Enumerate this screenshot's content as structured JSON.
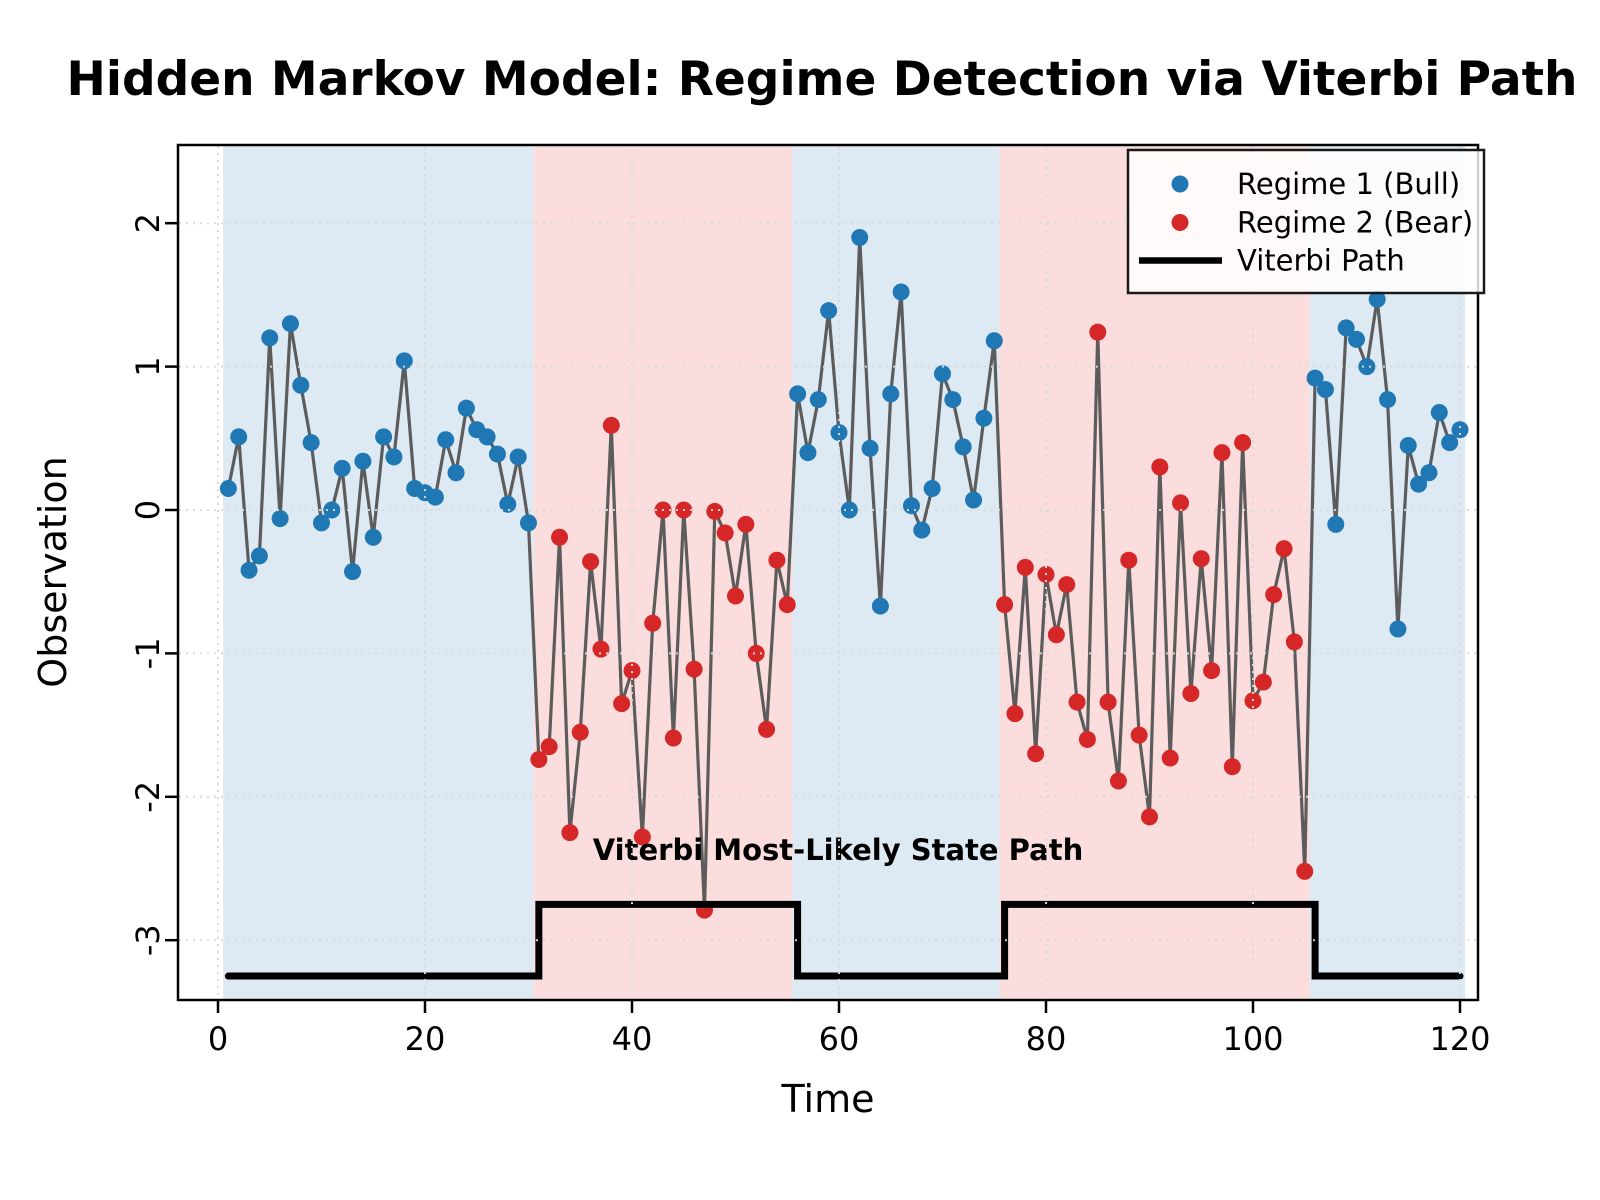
{
  "title": "Hidden Markov Model: Regime Detection via Viterbi Path",
  "annotation": "Viterbi Most-Likely State Path",
  "axes": {
    "xlabel": "Time",
    "ylabel": "Observation",
    "xticks": [
      0,
      20,
      40,
      60,
      80,
      100,
      120
    ],
    "yticks": [
      2,
      1,
      0,
      -1,
      -2,
      -3
    ]
  },
  "legend": [
    {
      "label": "Regime 1 (Bull)",
      "marker": "dot",
      "color": "#1f77b4"
    },
    {
      "label": "Regime 2 (Bear)",
      "marker": "dot",
      "color": "#d62728"
    },
    {
      "label": "Viterbi Path",
      "marker": "line",
      "color": "#000000"
    }
  ],
  "chart_data": {
    "type": "scatter",
    "title": "Hidden Markov Model: Regime Detection via Viterbi Path",
    "xlabel": "Time",
    "ylabel": "Observation",
    "xlim": [
      -3.9,
      121.7
    ],
    "ylim": [
      -3.42,
      2.55
    ],
    "grid": "dotted",
    "legend_position": "upper right",
    "x": [
      1,
      2,
      3,
      4,
      5,
      6,
      7,
      8,
      9,
      10,
      11,
      12,
      13,
      14,
      15,
      16,
      17,
      18,
      19,
      20,
      21,
      22,
      23,
      24,
      25,
      26,
      27,
      28,
      29,
      30,
      31,
      32,
      33,
      34,
      35,
      36,
      37,
      38,
      39,
      40,
      41,
      42,
      43,
      44,
      45,
      46,
      47,
      48,
      49,
      50,
      51,
      52,
      53,
      54,
      55,
      56,
      57,
      58,
      59,
      60,
      61,
      62,
      63,
      64,
      65,
      66,
      67,
      68,
      69,
      70,
      71,
      72,
      73,
      74,
      75,
      76,
      77,
      78,
      79,
      80,
      81,
      82,
      83,
      84,
      85,
      86,
      87,
      88,
      89,
      90,
      91,
      92,
      93,
      94,
      95,
      96,
      97,
      98,
      99,
      100,
      101,
      102,
      103,
      104,
      105,
      106,
      107,
      108,
      109,
      110,
      111,
      112,
      113,
      114,
      115,
      116,
      117,
      118,
      119,
      120
    ],
    "observations": [
      0.15,
      0.51,
      -0.42,
      -0.32,
      1.2,
      -0.06,
      1.3,
      0.87,
      0.47,
      -0.09,
      0.0,
      0.29,
      -0.43,
      0.34,
      -0.19,
      0.51,
      0.37,
      1.04,
      0.15,
      0.12,
      0.09,
      0.49,
      0.26,
      0.71,
      0.56,
      0.51,
      0.39,
      0.04,
      0.37,
      -0.09,
      -1.74,
      -1.65,
      -0.19,
      -2.25,
      -1.55,
      -0.36,
      -0.97,
      0.59,
      -1.35,
      -1.12,
      -2.28,
      -0.79,
      0.0,
      -1.59,
      0.0,
      -1.11,
      -2.79,
      -0.01,
      -0.16,
      -0.6,
      -0.1,
      -1.0,
      -1.53,
      -0.35,
      -0.66,
      0.81,
      0.4,
      0.77,
      1.39,
      0.54,
      0.0,
      1.9,
      0.43,
      -0.67,
      0.81,
      1.52,
      0.03,
      -0.14,
      0.15,
      0.95,
      0.77,
      0.44,
      0.07,
      0.64,
      1.18,
      -0.66,
      -1.42,
      -0.4,
      -1.7,
      -0.45,
      -0.87,
      -0.52,
      -1.34,
      -1.6,
      1.24,
      -1.34,
      -1.89,
      -0.35,
      -1.57,
      -2.14,
      0.3,
      -1.73,
      0.05,
      -1.28,
      -0.34,
      -1.12,
      0.4,
      -1.79,
      0.47,
      -1.33,
      -1.2,
      -0.59,
      -0.27,
      -0.92,
      -2.52,
      0.92,
      0.84,
      -0.1,
      1.27,
      1.19,
      1.0,
      1.47,
      0.77,
      -0.83,
      0.45,
      0.18,
      0.26,
      0.68,
      0.47,
      0.56
    ],
    "regime_segments": [
      {
        "start": 0.5,
        "end": 30.5,
        "regime": 1
      },
      {
        "start": 30.5,
        "end": 55.5,
        "regime": 2
      },
      {
        "start": 55.5,
        "end": 75.5,
        "regime": 1
      },
      {
        "start": 75.5,
        "end": 105.5,
        "regime": 2
      },
      {
        "start": 105.5,
        "end": 120.5,
        "regime": 1
      }
    ],
    "viterbi_path": {
      "levels": {
        "bull": -3.25,
        "bear": -2.75
      },
      "t_start": 1,
      "t_end": 120,
      "change_points": [
        31,
        56,
        76,
        106
      ]
    },
    "colors": {
      "bull": "#1f77b4",
      "bear": "#d62728",
      "bull_bg": "#dde9f3",
      "bear_bg": "#fbdddd",
      "line": "#5c5c5c",
      "viterbi": "#000000",
      "grid": "#d9d9d9"
    }
  }
}
